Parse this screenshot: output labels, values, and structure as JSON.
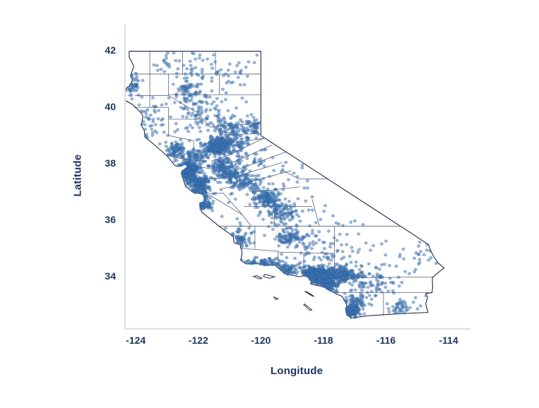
{
  "chart_data": {
    "type": "scatter",
    "title": "",
    "xlabel": "Longitude",
    "ylabel": "Latitude",
    "xlim": [
      -124.32,
      -113.39
    ],
    "ylim": [
      32.17,
      42.93
    ],
    "x_ticks": [
      -124,
      -122,
      -120,
      -118,
      -116,
      -114
    ],
    "y_ticks": [
      34,
      36,
      38,
      40,
      42
    ],
    "grid": false,
    "legend": "none",
    "background": "#ffffff",
    "axis_color": "#d9dde4",
    "label_color": "#1f3560",
    "outline_color": "#1c2b4a",
    "county_color": "#2a3a5c",
    "point_color": "#3d7ab9",
    "point_edge_color": "#1f3a6e",
    "point_opacity": 0.55,
    "point_radius_deg": 0.05,
    "seed": 20240101,
    "region": "California state outline with county boundaries",
    "california_outline": [
      [
        -124.21,
        41.99
      ],
      [
        -123.25,
        41.99
      ],
      [
        -122.3,
        41.99
      ],
      [
        -121.3,
        41.99
      ],
      [
        -120.0,
        41.99
      ],
      [
        -120.0,
        40.8
      ],
      [
        -120.0,
        39.72
      ],
      [
        -120.0,
        39.0
      ],
      [
        -119.0,
        38.28
      ],
      [
        -118.0,
        37.56
      ],
      [
        -117.0,
        36.84
      ],
      [
        -116.0,
        36.12
      ],
      [
        -115.0,
        35.4
      ],
      [
        -114.63,
        35.12
      ],
      [
        -114.6,
        34.99
      ],
      [
        -114.47,
        34.7
      ],
      [
        -114.33,
        34.48
      ],
      [
        -114.14,
        34.31
      ],
      [
        -114.3,
        34.17
      ],
      [
        -114.52,
        33.96
      ],
      [
        -114.51,
        33.6
      ],
      [
        -114.53,
        33.43
      ],
      [
        -114.73,
        33.4
      ],
      [
        -114.67,
        33.27
      ],
      [
        -114.73,
        33.03
      ],
      [
        -114.66,
        32.73
      ],
      [
        -115.5,
        32.69
      ],
      [
        -116.5,
        32.62
      ],
      [
        -117.13,
        32.53
      ],
      [
        -117.24,
        32.68
      ],
      [
        -117.28,
        32.85
      ],
      [
        -117.25,
        33.0
      ],
      [
        -117.4,
        33.3
      ],
      [
        -117.6,
        33.39
      ],
      [
        -118.0,
        33.65
      ],
      [
        -118.26,
        33.7
      ],
      [
        -118.41,
        33.74
      ],
      [
        -118.39,
        33.85
      ],
      [
        -118.54,
        34.04
      ],
      [
        -118.8,
        34.0
      ],
      [
        -119.22,
        34.1
      ],
      [
        -119.56,
        34.41
      ],
      [
        -119.88,
        34.41
      ],
      [
        -120.14,
        34.47
      ],
      [
        -120.47,
        34.45
      ],
      [
        -120.64,
        34.58
      ],
      [
        -120.6,
        34.85
      ],
      [
        -120.67,
        35.15
      ],
      [
        -120.86,
        35.2
      ],
      [
        -120.88,
        35.43
      ],
      [
        -121.33,
        35.78
      ],
      [
        -121.9,
        36.3
      ],
      [
        -121.94,
        36.58
      ],
      [
        -121.8,
        36.65
      ],
      [
        -121.79,
        36.8
      ],
      [
        -121.88,
        36.96
      ],
      [
        -122.16,
        36.98
      ],
      [
        -122.41,
        37.2
      ],
      [
        -122.5,
        37.52
      ],
      [
        -122.51,
        37.71
      ],
      [
        -122.39,
        37.81
      ],
      [
        -122.3,
        37.9
      ],
      [
        -122.41,
        38.01
      ],
      [
        -122.54,
        37.92
      ],
      [
        -122.68,
        37.91
      ],
      [
        -122.75,
        37.94
      ],
      [
        -123.0,
        38.28
      ],
      [
        -123.4,
        38.67
      ],
      [
        -123.7,
        38.94
      ],
      [
        -123.73,
        39.19
      ],
      [
        -123.82,
        39.35
      ],
      [
        -123.77,
        39.69
      ],
      [
        -123.85,
        39.83
      ],
      [
        -124.1,
        40.1
      ],
      [
        -124.36,
        40.26
      ],
      [
        -124.41,
        40.44
      ],
      [
        -124.28,
        40.7
      ],
      [
        -124.15,
        40.8
      ],
      [
        -124.11,
        41.0
      ],
      [
        -124.16,
        41.14
      ],
      [
        -124.06,
        41.46
      ],
      [
        -124.21,
        41.78
      ]
    ],
    "islands": [
      [
        [
          -120.24,
          34.01
        ],
        [
          -120.05,
          33.92
        ],
        [
          -119.97,
          33.94
        ],
        [
          -120.12,
          34.03
        ]
      ],
      [
        [
          -119.88,
          34.08
        ],
        [
          -119.56,
          33.99
        ],
        [
          -119.72,
          33.94
        ],
        [
          -119.92,
          34.0
        ]
      ],
      [
        [
          -118.6,
          33.48
        ],
        [
          -118.37,
          33.32
        ],
        [
          -118.3,
          33.3
        ],
        [
          -118.5,
          33.44
        ]
      ],
      [
        [
          -118.6,
          33.03
        ],
        [
          -118.37,
          32.82
        ],
        [
          -118.43,
          32.8
        ],
        [
          -118.63,
          33.0
        ]
      ],
      [
        [
          -119.58,
          33.28
        ],
        [
          -119.45,
          33.21
        ],
        [
          -119.53,
          33.19
        ]
      ]
    ],
    "county_lines": [
      [
        [
          -124.0,
          41.18
        ],
        [
          -120.0,
          41.18
        ]
      ],
      [
        [
          -123.55,
          41.99
        ],
        [
          -123.55,
          41.18
        ]
      ],
      [
        [
          -122.5,
          41.99
        ],
        [
          -122.5,
          41.18
        ]
      ],
      [
        [
          -121.45,
          41.99
        ],
        [
          -121.45,
          41.18
        ]
      ],
      [
        [
          -123.55,
          41.18
        ],
        [
          -123.55,
          40.0
        ]
      ],
      [
        [
          -122.95,
          41.18
        ],
        [
          -122.95,
          40.42
        ]
      ],
      [
        [
          -121.33,
          41.18
        ],
        [
          -121.33,
          40.45
        ]
      ],
      [
        [
          -124.07,
          40.0
        ],
        [
          -122.95,
          40.0
        ]
      ],
      [
        [
          -124.03,
          40.42
        ],
        [
          -122.95,
          40.42
        ]
      ],
      [
        [
          -122.95,
          40.45
        ],
        [
          -120.0,
          40.45
        ]
      ],
      [
        [
          -122.95,
          40.42
        ],
        [
          -122.0,
          39.79
        ]
      ],
      [
        [
          -122.95,
          40.0
        ],
        [
          -122.95,
          39.0
        ]
      ],
      [
        [
          -122.95,
          39.58
        ],
        [
          -121.85,
          39.58
        ]
      ],
      [
        [
          -122.95,
          39.0
        ],
        [
          -122.15,
          38.82
        ]
      ],
      [
        [
          -122.15,
          38.82
        ],
        [
          -122.15,
          38.12
        ]
      ],
      [
        [
          -123.0,
          38.3
        ],
        [
          -122.55,
          38.18
        ]
      ],
      [
        [
          -122.55,
          38.18
        ],
        [
          -121.74,
          38.08
        ]
      ],
      [
        [
          -122.0,
          39.79
        ],
        [
          -121.85,
          39.58
        ]
      ],
      [
        [
          -121.85,
          39.58
        ],
        [
          -121.62,
          39.3
        ]
      ],
      [
        [
          -121.62,
          39.3
        ],
        [
          -120.0,
          39.45
        ]
      ],
      [
        [
          -121.33,
          39.02
        ],
        [
          -120.0,
          39.07
        ]
      ],
      [
        [
          -121.14,
          38.71
        ],
        [
          -119.9,
          38.9
        ]
      ],
      [
        [
          -121.03,
          38.3
        ],
        [
          -119.89,
          38.92
        ]
      ],
      [
        [
          -121.0,
          38.0
        ],
        [
          -119.63,
          38.67
        ]
      ],
      [
        [
          -120.85,
          37.75
        ],
        [
          -119.2,
          38.42
        ]
      ],
      [
        [
          -120.65,
          37.6
        ],
        [
          -119.31,
          38.05
        ]
      ],
      [
        [
          -120.39,
          37.35
        ],
        [
          -119.02,
          37.76
        ]
      ],
      [
        [
          -120.3,
          36.99
        ],
        [
          -118.75,
          37.18
        ]
      ],
      [
        [
          -121.58,
          38.1
        ],
        [
          -121.03,
          38.3
        ]
      ],
      [
        [
          -121.57,
          38.07
        ],
        [
          -120.92,
          37.74
        ]
      ],
      [
        [
          -121.45,
          37.48
        ],
        [
          -120.39,
          37.63
        ]
      ],
      [
        [
          -121.23,
          37.13
        ],
        [
          -120.17,
          37.31
        ]
      ],
      [
        [
          -122.08,
          37.9
        ],
        [
          -121.55,
          37.82
        ]
      ],
      [
        [
          -122.2,
          37.48
        ],
        [
          -121.47,
          37.48
        ]
      ],
      [
        [
          -122.15,
          37.27
        ],
        [
          -121.64,
          36.94
        ]
      ],
      [
        [
          -121.64,
          36.94
        ],
        [
          -121.2,
          36.96
        ]
      ],
      [
        [
          -121.65,
          36.9
        ],
        [
          -120.6,
          36.2
        ]
      ],
      [
        [
          -121.2,
          36.96
        ],
        [
          -120.6,
          36.2
        ]
      ],
      [
        [
          -120.6,
          36.2
        ],
        [
          -120.31,
          35.79
        ]
      ],
      [
        [
          -121.35,
          35.79
        ],
        [
          -115.56,
          35.79
        ]
      ],
      [
        [
          -120.19,
          35.79
        ],
        [
          -120.19,
          34.98
        ]
      ],
      [
        [
          -120.65,
          35.0
        ],
        [
          -119.45,
          34.9
        ]
      ],
      [
        [
          -119.45,
          34.9
        ],
        [
          -119.45,
          34.38
        ]
      ],
      [
        [
          -119.45,
          34.87
        ],
        [
          -117.65,
          34.82
        ]
      ],
      [
        [
          -118.63,
          34.82
        ],
        [
          -118.63,
          34.16
        ]
      ],
      [
        [
          -117.65,
          35.79
        ],
        [
          -117.65,
          33.95
        ]
      ],
      [
        [
          -117.65,
          33.95
        ],
        [
          -114.5,
          33.99
        ]
      ],
      [
        [
          -117.6,
          33.43
        ],
        [
          -116.08,
          33.43
        ]
      ],
      [
        [
          -116.08,
          33.43
        ],
        [
          -114.52,
          33.43
        ]
      ],
      [
        [
          -116.08,
          33.43
        ],
        [
          -116.08,
          32.62
        ]
      ],
      [
        [
          -117.78,
          33.95
        ],
        [
          -117.51,
          33.43
        ]
      ],
      [
        [
          -118.12,
          33.78
        ],
        [
          -117.78,
          33.95
        ]
      ],
      [
        [
          -118.78,
          37.46
        ],
        [
          -117.87,
          37.46
        ]
      ],
      [
        [
          -119.3,
          37.76
        ],
        [
          -118.78,
          37.46
        ]
      ],
      [
        [
          -118.36,
          36.74
        ],
        [
          -118.13,
          35.79
        ]
      ],
      [
        [
          -120.55,
          36.49
        ],
        [
          -118.36,
          36.49
        ]
      ],
      [
        [
          -119.57,
          36.49
        ],
        [
          -119.57,
          35.79
        ]
      ]
    ],
    "point_clusters": [
      {
        "lon": -118.22,
        "lat": 34.06,
        "sx": 0.22,
        "sy": 0.13,
        "n": 420
      },
      {
        "lon": -117.9,
        "lat": 34.08,
        "sx": 0.28,
        "sy": 0.1,
        "n": 160
      },
      {
        "lon": -117.35,
        "lat": 34.05,
        "sx": 0.22,
        "sy": 0.12,
        "n": 150
      },
      {
        "lon": -117.85,
        "lat": 33.72,
        "sx": 0.16,
        "sy": 0.12,
        "n": 150
      },
      {
        "lon": -117.15,
        "lat": 32.78,
        "sx": 0.12,
        "sy": 0.1,
        "n": 170
      },
      {
        "lon": -117.0,
        "lat": 33.05,
        "sx": 0.2,
        "sy": 0.18,
        "n": 90
      },
      {
        "lon": -116.5,
        "lat": 33.8,
        "sx": 0.35,
        "sy": 0.25,
        "n": 70
      },
      {
        "lon": -122.4,
        "lat": 37.76,
        "sx": 0.12,
        "sy": 0.12,
        "n": 220
      },
      {
        "lon": -122.25,
        "lat": 37.82,
        "sx": 0.15,
        "sy": 0.1,
        "n": 120
      },
      {
        "lon": -121.95,
        "lat": 37.34,
        "sx": 0.17,
        "sy": 0.12,
        "n": 160
      },
      {
        "lon": -122.28,
        "lat": 37.52,
        "sx": 0.1,
        "sy": 0.12,
        "n": 80
      },
      {
        "lon": -122.05,
        "lat": 38.25,
        "sx": 0.22,
        "sy": 0.12,
        "n": 70
      },
      {
        "lon": -122.7,
        "lat": 38.45,
        "sx": 0.15,
        "sy": 0.15,
        "n": 80
      },
      {
        "lon": -121.43,
        "lat": 38.58,
        "sx": 0.17,
        "sy": 0.13,
        "n": 160
      },
      {
        "lon": -121.28,
        "lat": 38.75,
        "sx": 0.2,
        "sy": 0.15,
        "n": 80
      },
      {
        "lon": -121.0,
        "lat": 39.2,
        "sx": 0.3,
        "sy": 0.25,
        "n": 80
      },
      {
        "lon": -120.75,
        "lat": 38.65,
        "sx": 0.3,
        "sy": 0.2,
        "n": 70
      },
      {
        "lon": -121.25,
        "lat": 37.95,
        "sx": 0.18,
        "sy": 0.15,
        "n": 100
      },
      {
        "lon": -120.95,
        "lat": 37.6,
        "sx": 0.22,
        "sy": 0.15,
        "n": 100
      },
      {
        "lon": -120.45,
        "lat": 37.3,
        "sx": 0.25,
        "sy": 0.15,
        "n": 70
      },
      {
        "lon": -119.78,
        "lat": 36.74,
        "sx": 0.2,
        "sy": 0.16,
        "n": 120
      },
      {
        "lon": -119.3,
        "lat": 36.3,
        "sx": 0.25,
        "sy": 0.18,
        "n": 80
      },
      {
        "lon": -119.02,
        "lat": 35.37,
        "sx": 0.22,
        "sy": 0.15,
        "n": 90
      },
      {
        "lon": -122.0,
        "lat": 39.75,
        "sx": 0.3,
        "sy": 0.4,
        "n": 70
      },
      {
        "lon": -122.35,
        "lat": 40.55,
        "sx": 0.2,
        "sy": 0.2,
        "n": 60
      },
      {
        "lon": -124.1,
        "lat": 40.8,
        "sx": 0.12,
        "sy": 0.25,
        "n": 45
      },
      {
        "lon": -123.6,
        "lat": 39.3,
        "sx": 0.3,
        "sy": 0.4,
        "n": 45
      },
      {
        "lon": -122.6,
        "lat": 41.6,
        "sx": 0.5,
        "sy": 0.3,
        "n": 40
      },
      {
        "lon": -121.0,
        "lat": 41.3,
        "sx": 0.7,
        "sy": 0.45,
        "n": 45
      },
      {
        "lon": -120.3,
        "lat": 39.3,
        "sx": 0.25,
        "sy": 0.2,
        "n": 60
      },
      {
        "lon": -121.85,
        "lat": 36.6,
        "sx": 0.15,
        "sy": 0.12,
        "n": 70
      },
      {
        "lon": -121.95,
        "lat": 37.0,
        "sx": 0.15,
        "sy": 0.08,
        "n": 50
      },
      {
        "lon": -120.65,
        "lat": 35.4,
        "sx": 0.2,
        "sy": 0.18,
        "n": 60
      },
      {
        "lon": -119.95,
        "lat": 34.5,
        "sx": 0.3,
        "sy": 0.08,
        "n": 70
      },
      {
        "lon": -119.15,
        "lat": 34.25,
        "sx": 0.15,
        "sy": 0.1,
        "n": 60
      },
      {
        "lon": -121.7,
        "lat": 39.2,
        "sx": 0.8,
        "sy": 0.8,
        "n": 90
      },
      {
        "lon": -120.5,
        "lat": 37.8,
        "sx": 0.8,
        "sy": 0.7,
        "n": 90
      },
      {
        "lon": -119.3,
        "lat": 36.6,
        "sx": 0.7,
        "sy": 0.6,
        "n": 70
      },
      {
        "lon": -118.0,
        "lat": 35.3,
        "sx": 0.8,
        "sy": 0.6,
        "n": 60
      },
      {
        "lon": -116.2,
        "lat": 34.2,
        "sx": 0.9,
        "sy": 0.5,
        "n": 50
      },
      {
        "lon": -117.9,
        "lat": 34.6,
        "sx": 0.5,
        "sy": 0.3,
        "n": 50
      },
      {
        "lon": -115.55,
        "lat": 32.85,
        "sx": 0.25,
        "sy": 0.15,
        "n": 40
      },
      {
        "lon": -114.6,
        "lat": 34.8,
        "sx": 0.3,
        "sy": 0.3,
        "n": 15
      }
    ]
  }
}
